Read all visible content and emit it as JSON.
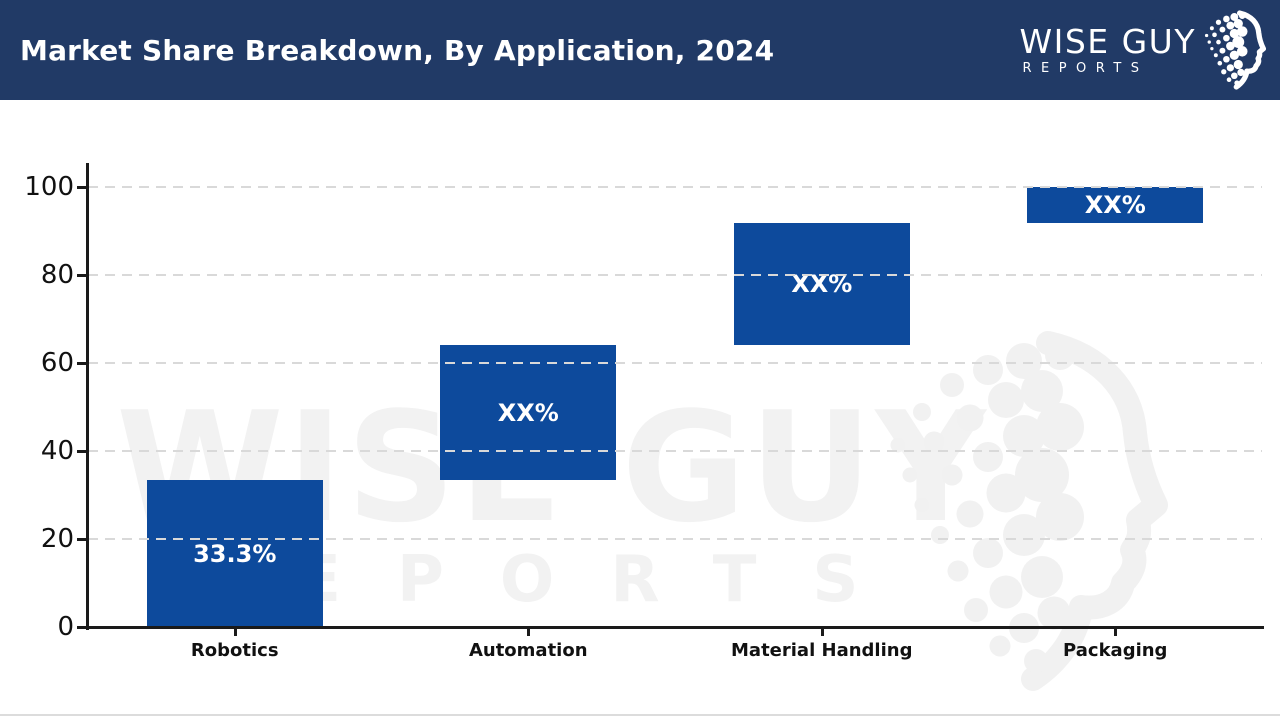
{
  "header": {
    "title": "Market Share Breakdown, By Application, 2024",
    "background_color": "#213a66",
    "logo": {
      "line1": "WISE GUY",
      "line2": "REPORTS"
    }
  },
  "watermark": {
    "line1": "WISE GUY",
    "line2": "REPORTS"
  },
  "chart_data": {
    "type": "bar",
    "subtype": "waterfall-breakdown (floating stacked segments)",
    "title": "Market Share Breakdown, By Application, 2024",
    "categories": [
      "Robotics",
      "Automation",
      "Material Handling",
      "Packaging"
    ],
    "segments": [
      {
        "category": "Robotics",
        "start": 0,
        "end": 33.3,
        "label": "33.3%"
      },
      {
        "category": "Automation",
        "start": 33.3,
        "end": 64.0,
        "label": "XX%"
      },
      {
        "category": "Material Handling",
        "start": 64.0,
        "end": 91.9,
        "label": "XX%"
      },
      {
        "category": "Packaging",
        "start": 91.9,
        "end": 100,
        "label": "XX%"
      }
    ],
    "xlabel": "",
    "ylabel": "",
    "ylim": [
      0,
      100
    ],
    "yticks": [
      0,
      20,
      40,
      60,
      80,
      100
    ],
    "grid": "horizontal dashed lines, drawn above bars",
    "legend": "none",
    "bar_color": "#0d4a9c",
    "bar_label_color": "#ffffff",
    "axis_color": "#1a1a1a",
    "grid_color": "#d9d9d9"
  }
}
